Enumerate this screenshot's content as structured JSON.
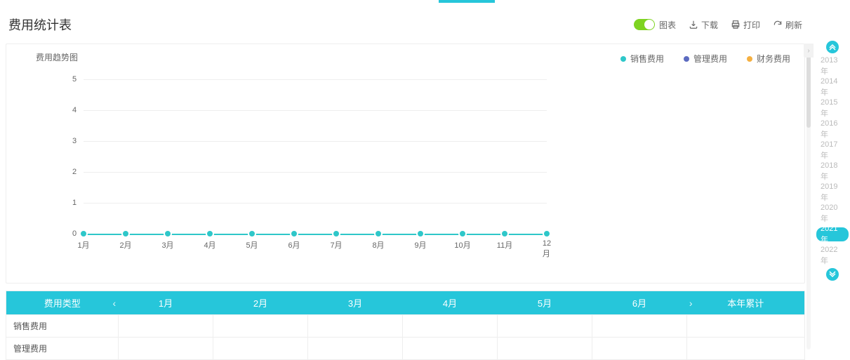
{
  "colors": {
    "accent": "#26c6da",
    "toggle_on": "#7ed321",
    "text_muted": "#666666",
    "grid": "#eeeeee",
    "table_header_bg": "#26c6da",
    "year_selected_bg": "#26c6da"
  },
  "header": {
    "title": "费用统计表"
  },
  "toolbar": {
    "toggle_label": "图表",
    "toggle_on": true,
    "download_label": "下载",
    "print_label": "打印",
    "refresh_label": "刷新"
  },
  "chart": {
    "title": "费用趋势图",
    "type": "line",
    "x_categories": [
      "1月",
      "2月",
      "3月",
      "4月",
      "5月",
      "6月",
      "7月",
      "8月",
      "9月",
      "10月",
      "11月",
      "12月"
    ],
    "y_ticks": [
      0,
      1,
      2,
      3,
      4,
      5
    ],
    "ylim": [
      0,
      5
    ],
    "grid_color": "#eeeeee",
    "axis_label_fontsize": 11,
    "title_fontsize": 12,
    "series": [
      {
        "name": "销售费用",
        "color": "#2ec7c9",
        "values": [
          0,
          0,
          0,
          0,
          0,
          0,
          0,
          0,
          0,
          0,
          0,
          0
        ],
        "marker": "circle"
      },
      {
        "name": "管理费用",
        "color": "#5c6bc0",
        "values": [
          0,
          0,
          0,
          0,
          0,
          0,
          0,
          0,
          0,
          0,
          0,
          0
        ],
        "marker": "circle"
      },
      {
        "name": "财务费用",
        "color": "#f5b041",
        "values": [
          0,
          0,
          0,
          0,
          0,
          0,
          0,
          0,
          0,
          0,
          0,
          0
        ],
        "marker": "circle"
      }
    ]
  },
  "table": {
    "first_col_header": "费用类型",
    "month_headers": [
      "1月",
      "2月",
      "3月",
      "4月",
      "5月",
      "6月"
    ],
    "total_header": "本年累计",
    "rows": [
      {
        "label": "销售费用",
        "cells": [
          "",
          "",
          "",
          "",
          "",
          ""
        ],
        "total": ""
      },
      {
        "label": "管理费用",
        "cells": [
          "",
          "",
          "",
          "",
          "",
          ""
        ],
        "total": ""
      }
    ]
  },
  "year_rail": {
    "years": [
      "2013年",
      "2014年",
      "2015年",
      "2016年",
      "2017年",
      "2018年",
      "2019年",
      "2020年",
      "2021年",
      "2022年"
    ],
    "selected": "2021年"
  }
}
